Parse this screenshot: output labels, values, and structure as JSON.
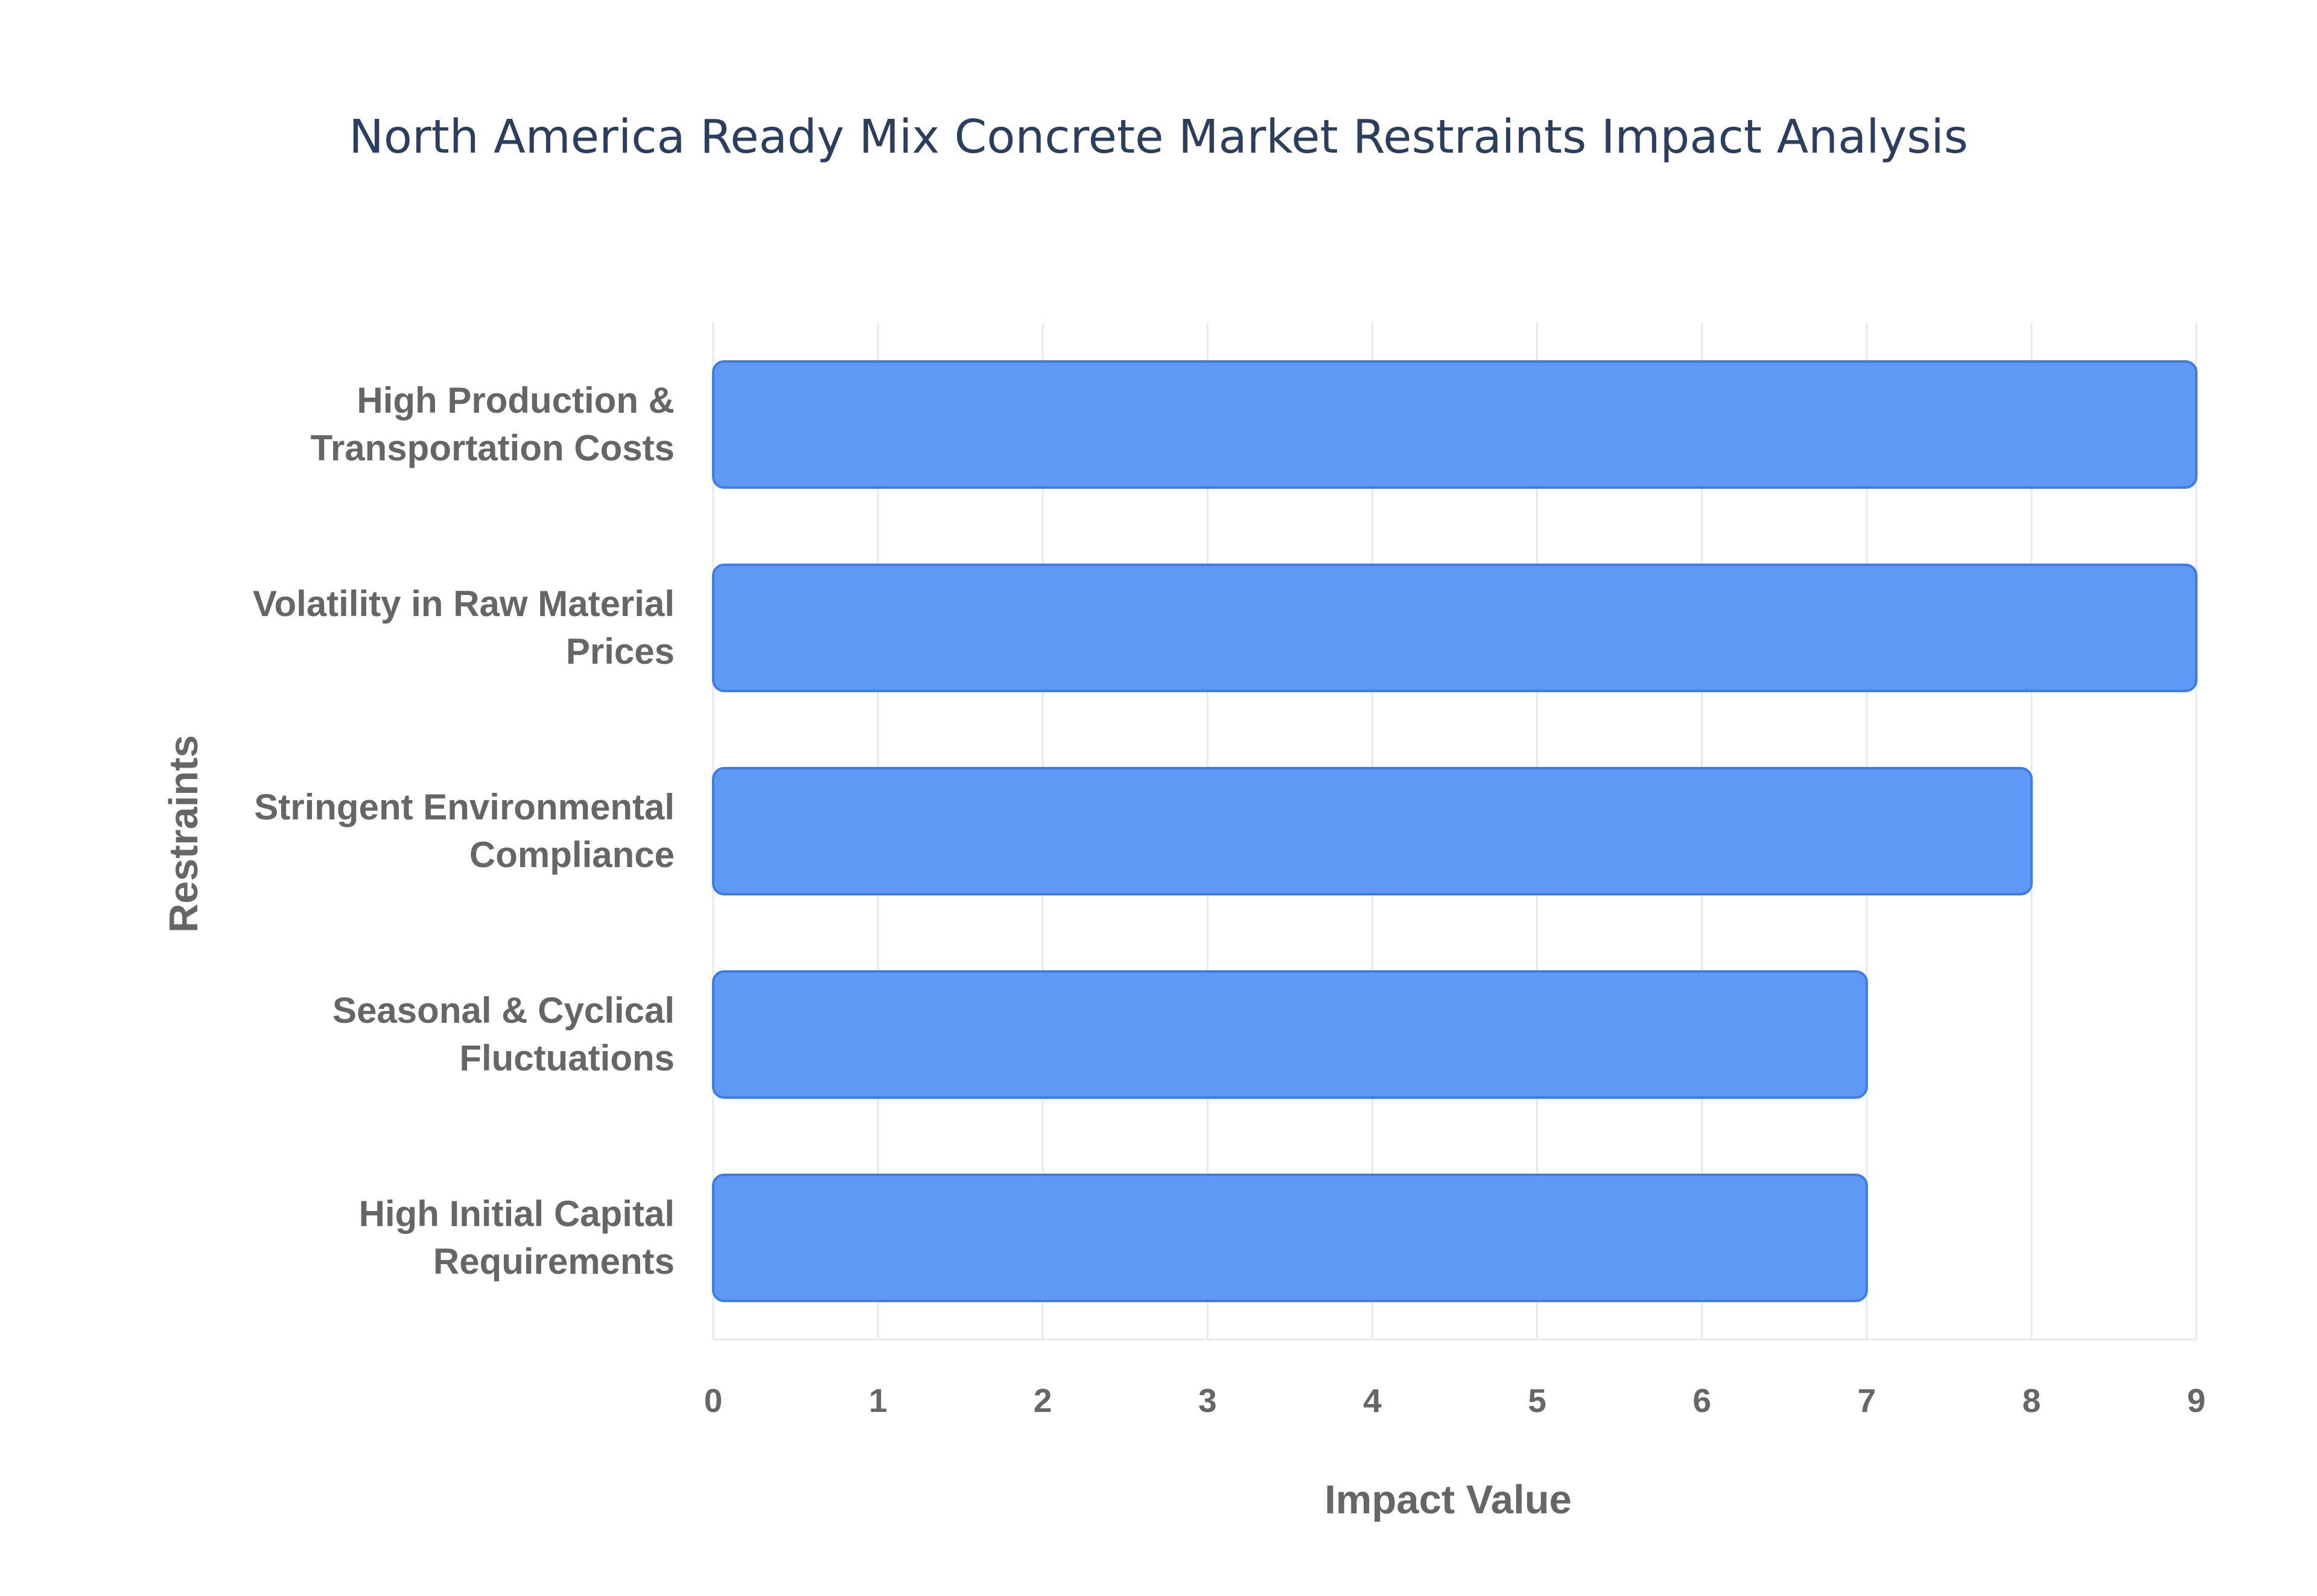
{
  "chart_data": {
    "type": "bar",
    "orientation": "horizontal",
    "title": "North America Ready Mix Concrete Market Restraints Impact Analysis",
    "xlabel": "Impact Value",
    "ylabel": "Restraints",
    "categories": [
      [
        "High Production &",
        "Transportation Costs"
      ],
      [
        "Volatility in Raw Material",
        "Prices"
      ],
      [
        "Stringent Environmental",
        "Compliance"
      ],
      [
        "Seasonal & Cyclical",
        "Fluctuations"
      ],
      [
        "High Initial Capital",
        "Requirements"
      ]
    ],
    "values": [
      9,
      9,
      8,
      7,
      7
    ],
    "xlim": [
      0,
      9
    ],
    "xticks": [
      "0",
      "1",
      "2",
      "3",
      "4",
      "5",
      "6",
      "7",
      "8",
      "9"
    ],
    "grid": true,
    "legend": "none",
    "colors": {
      "bar_fill": "#6098f6",
      "bar_stroke": "#3b7de8",
      "grid": "#e8e8e8",
      "text": "#666666",
      "title": "#2a3f5f"
    }
  }
}
